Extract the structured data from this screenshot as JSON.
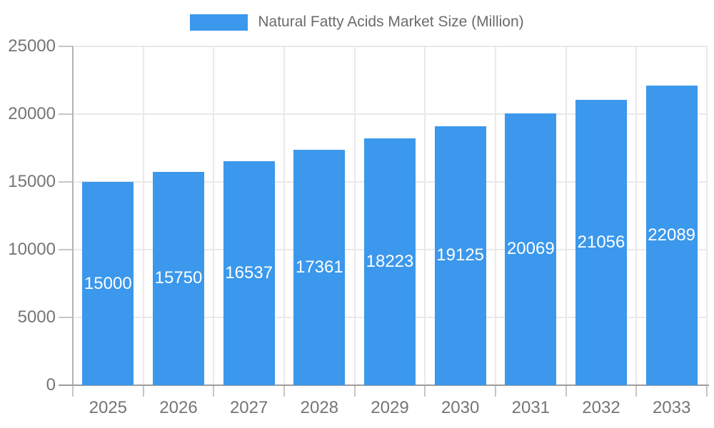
{
  "chart_data": {
    "type": "bar",
    "title": "Natural Fatty Acids Market Size (Million)",
    "categories": [
      "2025",
      "2026",
      "2027",
      "2028",
      "2029",
      "2030",
      "2031",
      "2032",
      "2033"
    ],
    "values": [
      15000,
      15750,
      16537,
      17361,
      18223,
      19125,
      20069,
      21056,
      22089
    ],
    "xlabel": "",
    "ylabel": "",
    "ylim": [
      0,
      25000
    ],
    "yticks": [
      0,
      5000,
      10000,
      15000,
      20000,
      25000
    ],
    "grid": true,
    "legend_position": "top-center",
    "bar_labels_inside": true,
    "colors": {
      "bar": "#3b98ec",
      "bar_value_text": "#ffffff",
      "axis_text": "#757575",
      "legend_text": "#6b6b6b",
      "gridline": "#e9e9e9",
      "tick": "#c6c6c6",
      "y_axis_line": "#b3b3b3",
      "x_axis_line": "#9c9c9c",
      "background": "#ffffff"
    }
  }
}
